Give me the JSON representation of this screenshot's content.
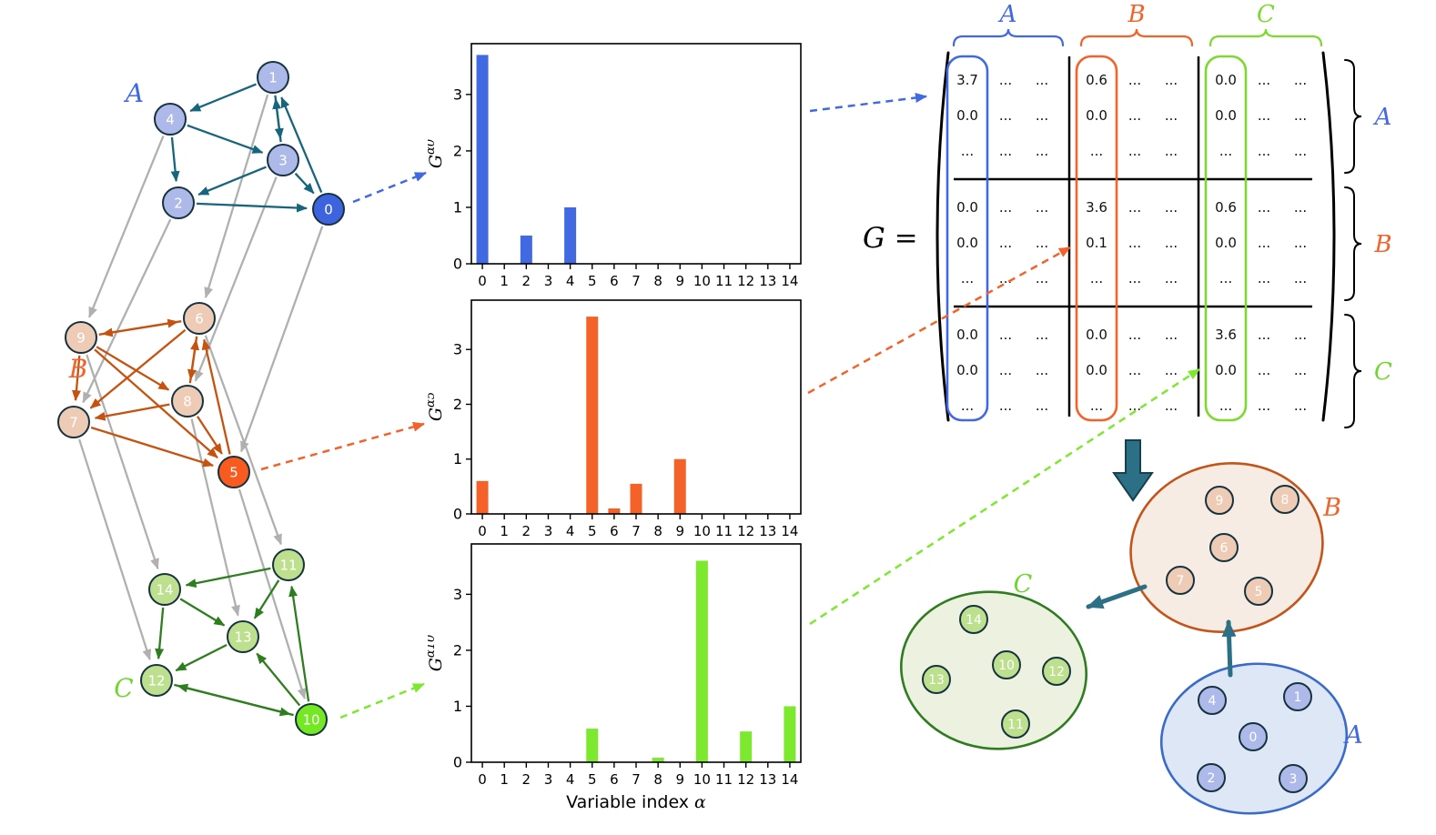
{
  "colors": {
    "blue": "#4169E1",
    "orange": "#F4622A",
    "green": "#6FD62C",
    "teal_edge": "#17657D",
    "orange_edge": "#C65210",
    "green_edge": "#2E7D1F",
    "gray_edge": "#B0B0B0",
    "teal_arrow": "#2C7086",
    "teal_arrow_dark": "#16404F",
    "node": {
      "A": {
        "light": "#ADB9E8",
        "bright": "#3E63DF"
      },
      "B": {
        "light": "#EDCBB5",
        "bright": "#F95A1E"
      },
      "C": {
        "light": "#BCE08E",
        "bright": "#74E822"
      }
    }
  },
  "network": {
    "cluster_labels": [
      {
        "id": "A",
        "label": "A",
        "color": "#4169E1"
      },
      {
        "id": "B",
        "label": "B",
        "color": "#F4622A"
      },
      {
        "id": "C",
        "label": "C",
        "color": "#6FD62C"
      }
    ],
    "nodes": [
      {
        "id": "0",
        "cluster": "A",
        "highlight": true
      },
      {
        "id": "1",
        "cluster": "A"
      },
      {
        "id": "2",
        "cluster": "A"
      },
      {
        "id": "3",
        "cluster": "A"
      },
      {
        "id": "4",
        "cluster": "A"
      },
      {
        "id": "5",
        "cluster": "B",
        "highlight": true
      },
      {
        "id": "6",
        "cluster": "B"
      },
      {
        "id": "7",
        "cluster": "B"
      },
      {
        "id": "8",
        "cluster": "B"
      },
      {
        "id": "9",
        "cluster": "B"
      },
      {
        "id": "10",
        "cluster": "C",
        "highlight": true
      },
      {
        "id": "11",
        "cluster": "C"
      },
      {
        "id": "12",
        "cluster": "C"
      },
      {
        "id": "13",
        "cluster": "C"
      },
      {
        "id": "14",
        "cluster": "C"
      }
    ],
    "edges": {
      "cross": [
        [
          "0",
          "5"
        ],
        [
          "1",
          "6"
        ],
        [
          "2",
          "7"
        ],
        [
          "3",
          "8"
        ],
        [
          "4",
          "9"
        ],
        [
          "5",
          "10"
        ],
        [
          "6",
          "11"
        ],
        [
          "7",
          "12"
        ],
        [
          "8",
          "13"
        ],
        [
          "9",
          "14"
        ]
      ],
      "A": [
        [
          "1",
          "4"
        ],
        [
          "4",
          "2"
        ],
        [
          "4",
          "3"
        ],
        [
          "3",
          "1"
        ],
        [
          "1",
          "3"
        ],
        [
          "3",
          "2"
        ],
        [
          "2",
          "0"
        ],
        [
          "3",
          "0"
        ],
        [
          "0",
          "1"
        ]
      ],
      "B": [
        [
          "9",
          "6"
        ],
        [
          "6",
          "9"
        ],
        [
          "9",
          "7"
        ],
        [
          "9",
          "8"
        ],
        [
          "6",
          "8"
        ],
        [
          "8",
          "6"
        ],
        [
          "6",
          "7"
        ],
        [
          "8",
          "7"
        ],
        [
          "7",
          "5"
        ],
        [
          "8",
          "5"
        ],
        [
          "9",
          "5"
        ],
        [
          "5",
          "6"
        ]
      ],
      "C": [
        [
          "11",
          "14"
        ],
        [
          "11",
          "13"
        ],
        [
          "14",
          "12"
        ],
        [
          "14",
          "13"
        ],
        [
          "13",
          "12"
        ],
        [
          "10",
          "13"
        ],
        [
          "10",
          "11"
        ],
        [
          "12",
          "10"
        ],
        [
          "10",
          "12"
        ]
      ]
    }
  },
  "chart_data": [
    {
      "type": "bar",
      "ylabel": "G^{α0}",
      "ylabel_base": "G",
      "ylabel_sup": "α0",
      "color": "#4169E1",
      "yticks": [
        0,
        1,
        2,
        3
      ],
      "ylim": [
        0,
        3.9
      ],
      "categories": [
        0,
        1,
        2,
        3,
        4,
        5,
        6,
        7,
        8,
        9,
        10,
        11,
        12,
        13,
        14
      ],
      "values": [
        3.7,
        0,
        0.5,
        0,
        1.0,
        0,
        0,
        0,
        0,
        0,
        0,
        0,
        0,
        0,
        0
      ]
    },
    {
      "type": "bar",
      "ylabel": "G^{α5}",
      "ylabel_base": "G",
      "ylabel_sup": "α5",
      "color": "#F4622A",
      "yticks": [
        0,
        1,
        2,
        3
      ],
      "ylim": [
        0,
        3.9
      ],
      "categories": [
        0,
        1,
        2,
        3,
        4,
        5,
        6,
        7,
        8,
        9,
        10,
        11,
        12,
        13,
        14
      ],
      "values": [
        0.6,
        0,
        0,
        0,
        0,
        3.6,
        0.1,
        0.55,
        0,
        1.0,
        0,
        0,
        0,
        0,
        0
      ]
    },
    {
      "type": "bar",
      "ylabel": "G^{α10}",
      "ylabel_base": "G",
      "ylabel_sup": "α10",
      "color": "#7CE82E",
      "yticks": [
        0,
        1,
        2,
        3
      ],
      "ylim": [
        0,
        3.9
      ],
      "categories": [
        0,
        1,
        2,
        3,
        4,
        5,
        6,
        7,
        8,
        9,
        10,
        11,
        12,
        13,
        14
      ],
      "values": [
        0,
        0,
        0,
        0,
        0,
        0.6,
        0,
        0,
        0.08,
        0,
        3.6,
        0,
        0.55,
        0,
        1.0
      ],
      "xlabel": "Variable index α",
      "xlabel_main": "Variable index",
      "xlabel_sym": "α"
    }
  ],
  "matrix": {
    "equals_label": "G =",
    "col_groups": [
      {
        "label": "A",
        "color": "#4169E1"
      },
      {
        "label": "B",
        "color": "#F4622A"
      },
      {
        "label": "C",
        "color": "#7CD92E"
      }
    ],
    "row_groups": [
      {
        "label": "A",
        "color": "#4169E1"
      },
      {
        "label": "B",
        "color": "#F4622A"
      },
      {
        "label": "C",
        "color": "#6FD62C"
      }
    ],
    "rows": [
      [
        "3.7",
        "...",
        "...",
        "0.6",
        "...",
        "...",
        "0.0",
        "...",
        "..."
      ],
      [
        "0.0",
        "...",
        "...",
        "0.0",
        "...",
        "...",
        "0.0",
        "...",
        "..."
      ],
      [
        "...",
        "...",
        "...",
        "...",
        "...",
        "...",
        "...",
        "...",
        "..."
      ],
      [
        "0.0",
        "...",
        "...",
        "3.6",
        "...",
        "...",
        "0.6",
        "...",
        "..."
      ],
      [
        "0.0",
        "...",
        "...",
        "0.1",
        "...",
        "...",
        "0.0",
        "...",
        "..."
      ],
      [
        "...",
        "...",
        "...",
        "...",
        "...",
        "...",
        "...",
        "...",
        "..."
      ],
      [
        "0.0",
        "...",
        "...",
        "0.0",
        "...",
        "...",
        "3.6",
        "...",
        "..."
      ],
      [
        "0.0",
        "...",
        "...",
        "0.0",
        "...",
        "...",
        "0.0",
        "...",
        "..."
      ],
      [
        "...",
        "...",
        "...",
        "...",
        "...",
        "...",
        "...",
        "...",
        "..."
      ]
    ]
  },
  "coarse": {
    "groups": [
      {
        "label": "B",
        "color": "#F4622A",
        "fill": "#F6ECE3",
        "stroke": "#C3541A",
        "nodes": [
          "9",
          "8",
          "6",
          "7",
          "5"
        ]
      },
      {
        "label": "C",
        "color": "#6FD62C",
        "fill": "#EDF1E0",
        "stroke": "#2E7D1F",
        "nodes": [
          "14",
          "10",
          "12",
          "13",
          "11"
        ]
      },
      {
        "label": "A",
        "color": "#4169E1",
        "fill": "#DDE7F6",
        "stroke": "#3A6BC8",
        "nodes": [
          "4",
          "1",
          "0",
          "2",
          "3"
        ]
      }
    ],
    "arrows": [
      {
        "from": "B",
        "to": "C"
      },
      {
        "from": "A",
        "to": "B"
      }
    ]
  }
}
